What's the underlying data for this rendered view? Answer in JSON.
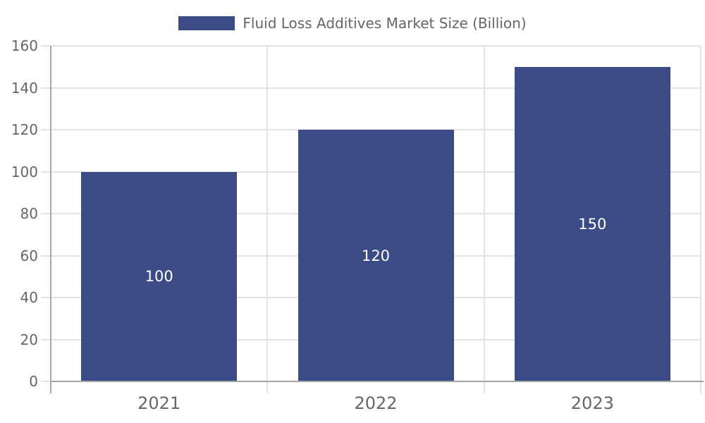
{
  "chart_data": {
    "type": "bar",
    "title": "Fluid Loss Additives Market Size (Billion)",
    "legend_position": "top",
    "categories": [
      "2021",
      "2022",
      "2023"
    ],
    "series": [
      {
        "name": "Fluid Loss Additives Market Size (Billion)",
        "values": [
          100,
          120,
          150
        ]
      }
    ],
    "data_labels": [
      "100",
      "120",
      "150"
    ],
    "xlabel": "",
    "ylabel": "",
    "ylim": [
      0,
      160
    ],
    "yticks": [
      0,
      20,
      40,
      60,
      80,
      100,
      120,
      140,
      160
    ],
    "grid": true,
    "colors": {
      "bar": "#3a4b86",
      "axis_text": "#666666",
      "legend_text": "#666666",
      "data_label_text": "#ffffff",
      "gridline": "#e3e3e3",
      "axis_line": "#a6a6a6",
      "background": "#ffffff"
    }
  }
}
